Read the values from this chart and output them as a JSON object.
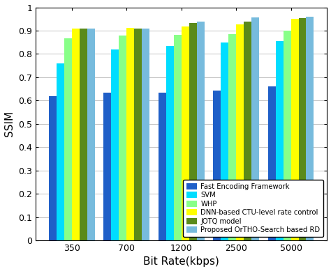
{
  "title": "",
  "xlabel": "Bit Rate(kbps)",
  "ylabel": "SSIM",
  "categories": [
    "350",
    "700",
    "1200",
    "2500",
    "5000"
  ],
  "series": [
    {
      "label": "Fast Encoding Framework",
      "color": "#1f5fc8",
      "values": [
        0.62,
        0.633,
        0.635,
        0.643,
        0.662
      ]
    },
    {
      "label": "SVM",
      "color": "#00ddff",
      "values": [
        0.76,
        0.82,
        0.835,
        0.85,
        0.855
      ]
    },
    {
      "label": "WHP",
      "color": "#88ff88",
      "values": [
        0.868,
        0.878,
        0.883,
        0.885,
        0.9
      ]
    },
    {
      "label": "DNN-based CTU-level rate control",
      "color": "#ffff00",
      "values": [
        0.91,
        0.912,
        0.918,
        0.928,
        0.952
      ]
    },
    {
      "label": "JOTQ model",
      "color": "#5a8a1a",
      "values": [
        0.91,
        0.91,
        0.933,
        0.94,
        0.955
      ]
    },
    {
      "label": "Proposed OrTHO-Search based RD",
      "color": "#77bbdd",
      "values": [
        0.908,
        0.91,
        0.94,
        0.958,
        0.96
      ]
    }
  ],
  "ylim": [
    0,
    1.0
  ],
  "yticks": [
    0,
    0.1,
    0.2,
    0.3,
    0.4,
    0.5,
    0.6,
    0.7,
    0.8,
    0.9,
    1.0
  ],
  "ytick_labels": [
    "0",
    "0.1",
    "0.2",
    "0.3",
    "0.4",
    "0.5",
    "0.6",
    "0.7",
    "0.8",
    "0.9",
    "1"
  ],
  "legend_loc": "lower right",
  "bar_width": 0.14,
  "figsize": [
    4.74,
    3.89
  ],
  "dpi": 100,
  "background_color": "#ffffff",
  "xlabel_fontsize": 11,
  "ylabel_fontsize": 11,
  "tick_fontsize": 9,
  "legend_fontsize": 7.2
}
